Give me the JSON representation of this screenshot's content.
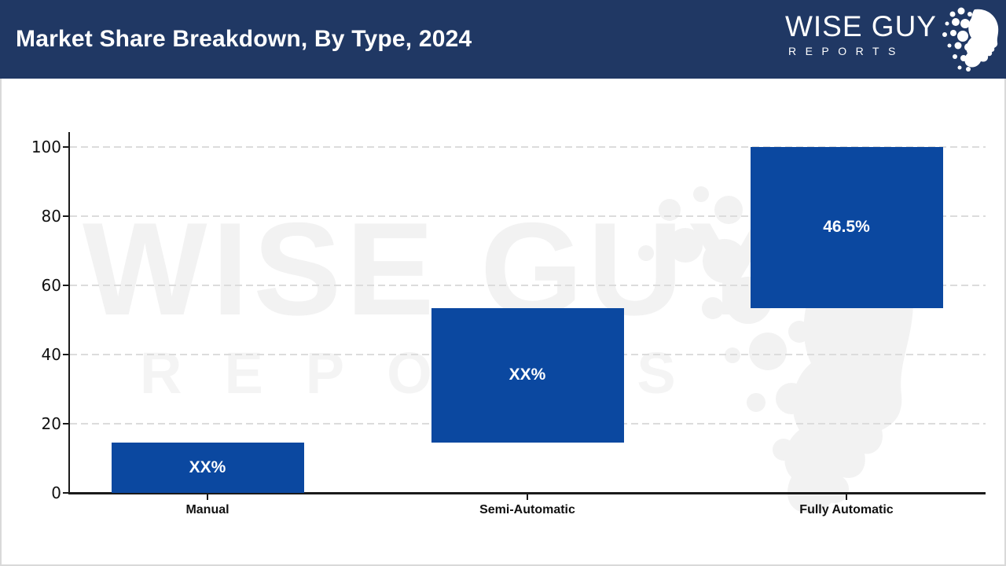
{
  "header": {
    "title": "Market Share Breakdown, By Type, 2024",
    "logo": {
      "line1": "WISE GUY",
      "line2": "REPORTS"
    }
  },
  "watermark": {
    "line1": "WISE GUY",
    "line2": "REPORTS"
  },
  "chart_data": {
    "type": "bar",
    "variant": "waterfall",
    "title": "Market Share Breakdown, By Type, 2024",
    "categories": [
      "Manual",
      "Semi-Automatic",
      "Fully Automatic"
    ],
    "segments": [
      {
        "category": "Manual",
        "start": 0,
        "end": 14.5,
        "value_estimate": 14.5,
        "value_label": "XX%"
      },
      {
        "category": "Semi-Automatic",
        "start": 14.5,
        "end": 53.5,
        "value_estimate": 39.0,
        "value_label": "XX%"
      },
      {
        "category": "Fully Automatic",
        "start": 53.5,
        "end": 100,
        "value_estimate": 46.5,
        "value_label": "46.5%"
      }
    ],
    "yticks": [
      0,
      20,
      40,
      60,
      80,
      100
    ],
    "ylim": [
      0,
      105
    ],
    "xlabel": "",
    "ylabel": "",
    "grid": "horizontal-dashed",
    "legend": "none",
    "bar_color": "#0b48a0",
    "bar_label_color": "#ffffff"
  },
  "colors": {
    "header_bg": "#203864",
    "bar": "#0b48a0",
    "gridline": "#dcdcdc",
    "axis": "#1a1a1a",
    "watermark": "#f2f2f2",
    "card_border": "#d9d9d9"
  }
}
